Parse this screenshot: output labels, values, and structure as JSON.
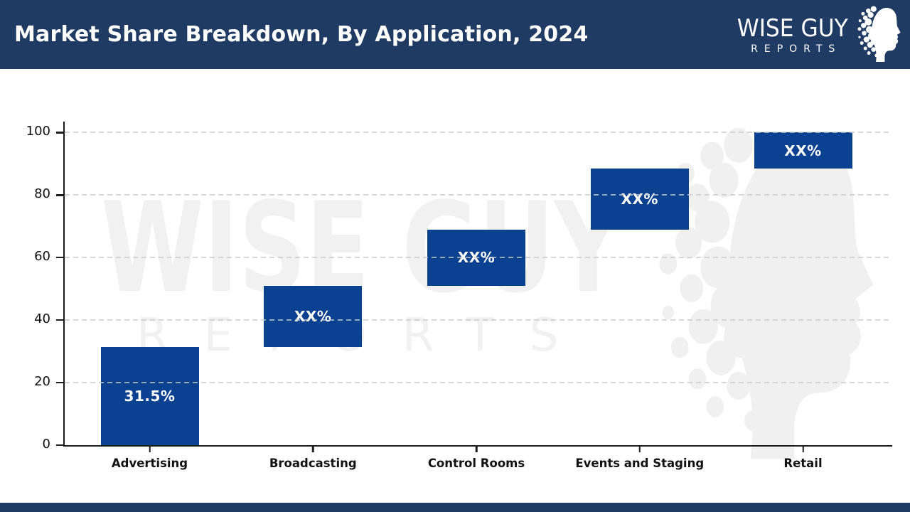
{
  "header": {
    "title": "Market Share Breakdown, By Application, 2024",
    "bg_color": "#1F3A63",
    "brand": {
      "name": "WISE GUY",
      "tagline": "REPORTS"
    }
  },
  "watermark": {
    "line1": "WISE GUY",
    "line2": "REPORTS"
  },
  "chart_data": {
    "type": "bar",
    "variant": "waterfall",
    "title": "Market Share Breakdown, By Application, 2024",
    "xlabel": "",
    "ylabel": "",
    "categories": [
      "Advertising",
      "Broadcasting",
      "Control Rooms",
      "Events and Staging",
      "Retail"
    ],
    "segments": [
      {
        "category": "Advertising",
        "start": 0,
        "end": 31.5,
        "value_label": "31.5%"
      },
      {
        "category": "Broadcasting",
        "start": 31.5,
        "end": 51,
        "value_label": "XX%"
      },
      {
        "category": "Control Rooms",
        "start": 51,
        "end": 69,
        "value_label": "XX%"
      },
      {
        "category": "Events and Staging",
        "start": 69,
        "end": 88.5,
        "value_label": "XX%"
      },
      {
        "category": "Retail",
        "start": 88.5,
        "end": 100,
        "value_label": "XX%"
      }
    ],
    "y_ticks": [
      0,
      20,
      40,
      60,
      80,
      100
    ],
    "ylim": [
      0,
      103.5
    ],
    "grid": "dashed-horizontal",
    "legend": "none",
    "bar_color": "#0A4191",
    "value_label_color": "#FFFFFF",
    "axis_color": "#1C1C1C"
  },
  "footer": {
    "bg_color": "#1F3A63"
  }
}
